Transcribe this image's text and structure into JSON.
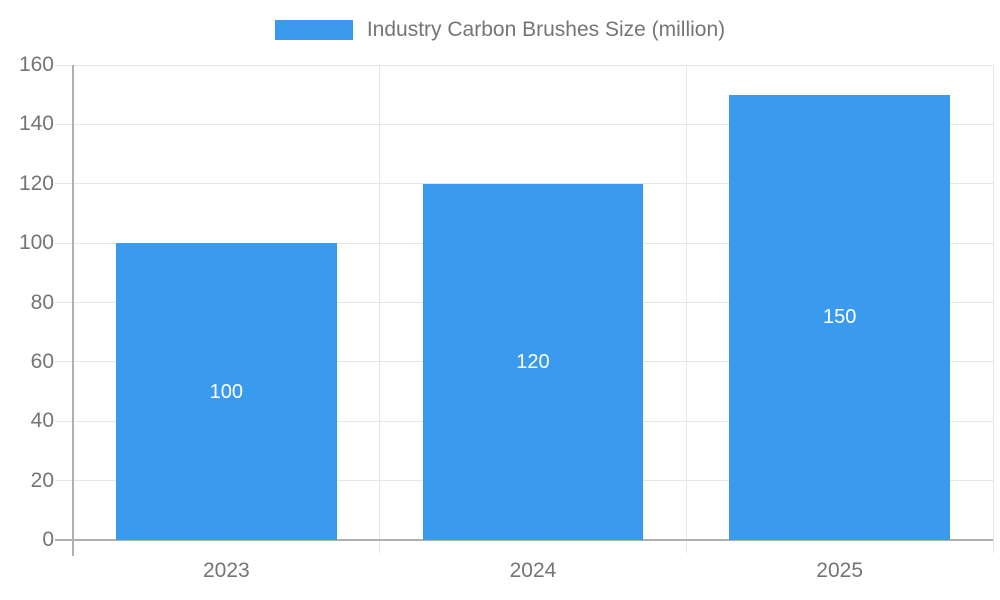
{
  "legend": {
    "label": "Industry Carbon Brushes Size (million)"
  },
  "colors": {
    "bar": "#3A9AED",
    "axis_text": "#757575",
    "grid_line": "#E6E6E6",
    "axis_line": "#B0B0B0",
    "bar_label": "#FFFFFF",
    "background": "#FFFFFF"
  },
  "chart_data": {
    "type": "bar",
    "title": "",
    "xlabel": "",
    "ylabel": "",
    "categories": [
      "2023",
      "2024",
      "2025"
    ],
    "series": [
      {
        "name": "Industry Carbon Brushes Size (million)",
        "values": [
          100,
          120,
          150
        ]
      }
    ],
    "ylim": [
      0,
      160
    ],
    "yticks": [
      0,
      20,
      40,
      60,
      80,
      100,
      120,
      140,
      160
    ],
    "grid": true,
    "legend_position": "top",
    "bar_value_labels_shown": true
  }
}
